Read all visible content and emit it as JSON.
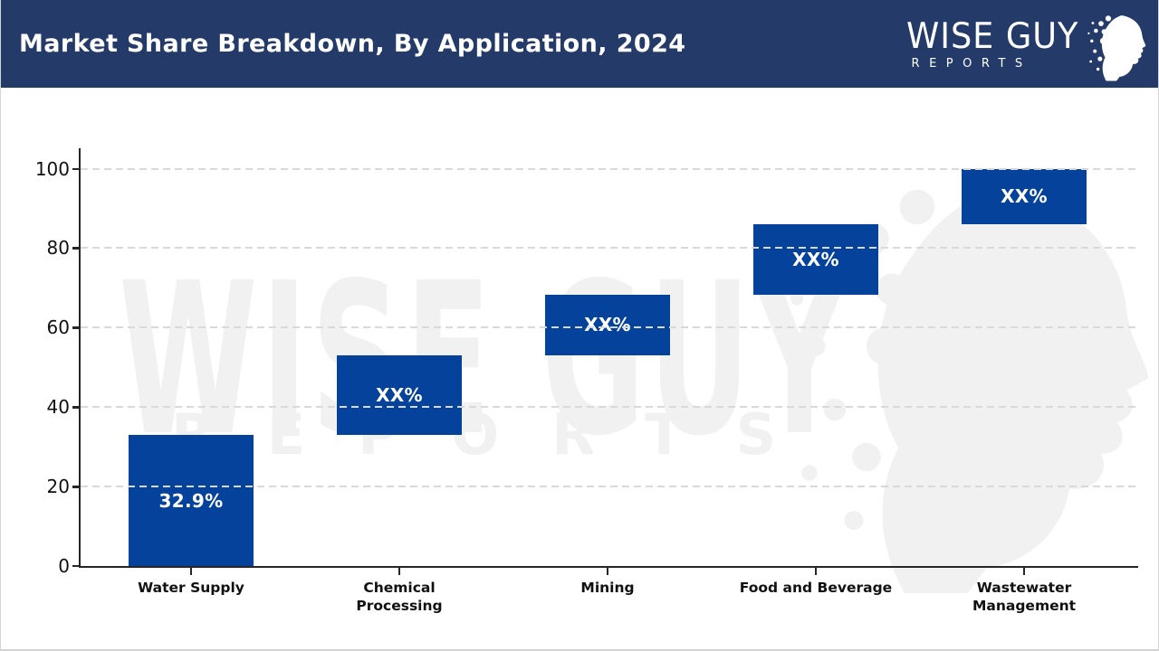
{
  "header": {
    "title": "Market Share Breakdown, By Application, 2024",
    "background": "#243A68",
    "logo": {
      "line1": "WISE GUY",
      "line2": "REPORTS"
    }
  },
  "watermark": {
    "line1": "WISE GUY",
    "line2": "REPORTS"
  },
  "chart_data": {
    "type": "bar",
    "subtype": "waterfall",
    "title": "Market Share Breakdown, By Application, 2024",
    "categories": [
      "Water Supply",
      "Chemical\nProcessing",
      "Mining",
      "Food and Beverage",
      "Wastewater\nManagement"
    ],
    "bars": [
      {
        "category": "Water Supply",
        "start": 0,
        "end": 32.9,
        "label": "32.9%"
      },
      {
        "category": "Chemical\nProcessing",
        "start": 32.9,
        "end": 53.1,
        "label": "XX%"
      },
      {
        "category": "Mining",
        "start": 53.1,
        "end": 68.3,
        "label": "XX%"
      },
      {
        "category": "Food and Beverage",
        "start": 68.3,
        "end": 86.0,
        "label": "XX%"
      },
      {
        "category": "Wastewater\nManagement",
        "start": 86.0,
        "end": 100.0,
        "label": "XX%"
      }
    ],
    "yticks": [
      0,
      20,
      40,
      60,
      80,
      100
    ],
    "ylim": [
      0,
      104.7
    ],
    "xlabel": "",
    "ylabel": "",
    "grid": "horizontal-dashed",
    "gridline_color": "#d9d9d9",
    "legend": "none",
    "bar_color": "#05429B",
    "bar_label_color": "#FFFFFF",
    "axis_color": "#262626"
  }
}
